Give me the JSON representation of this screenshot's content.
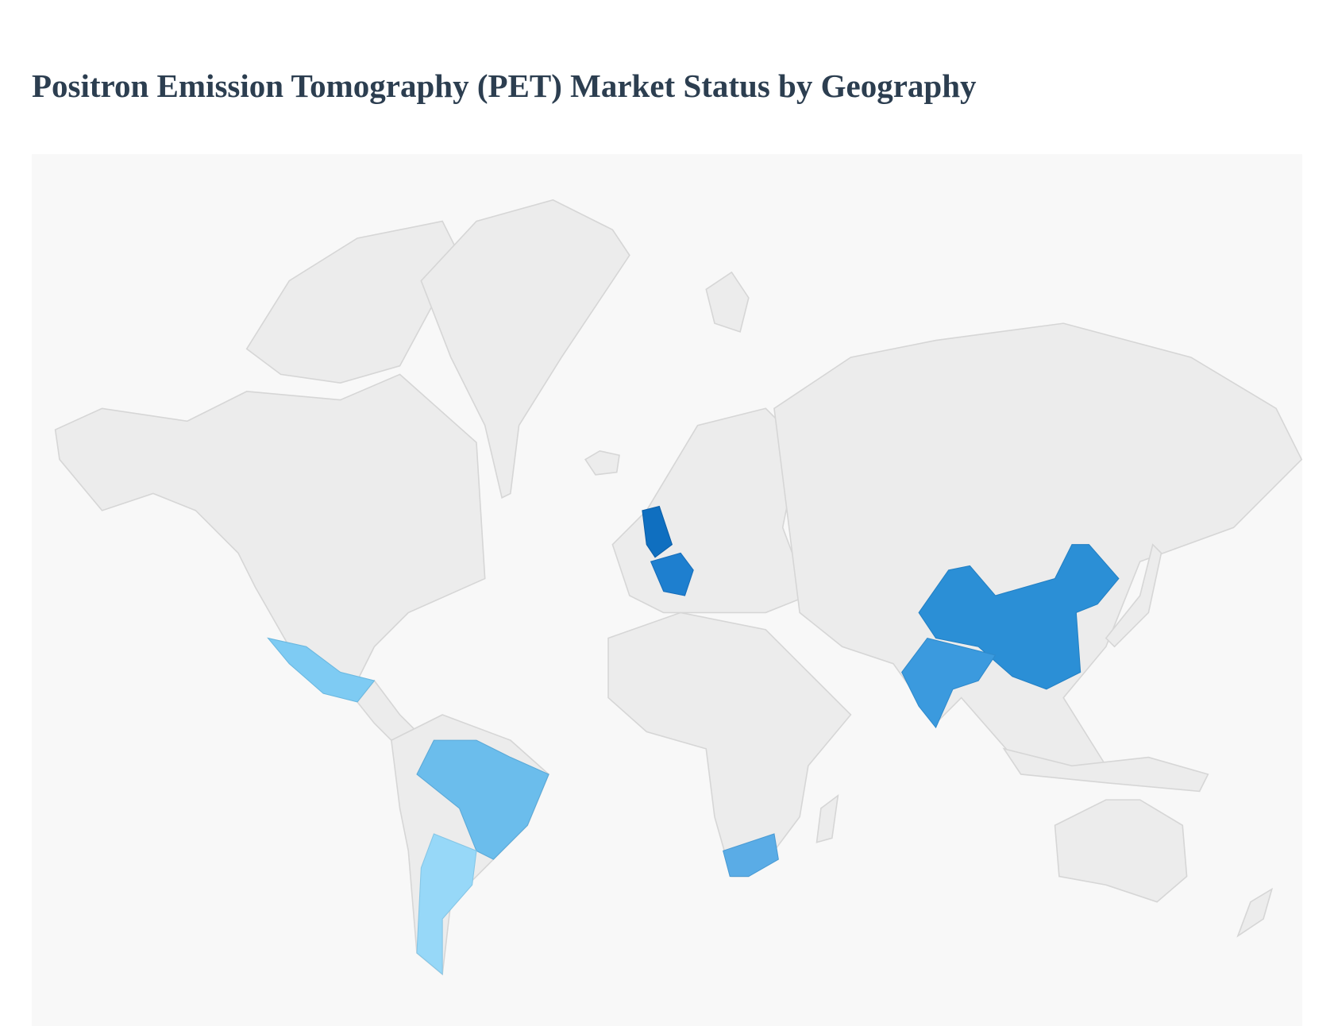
{
  "title": "Positron Emission Tomography (PET) Market Status by Geography"
}
